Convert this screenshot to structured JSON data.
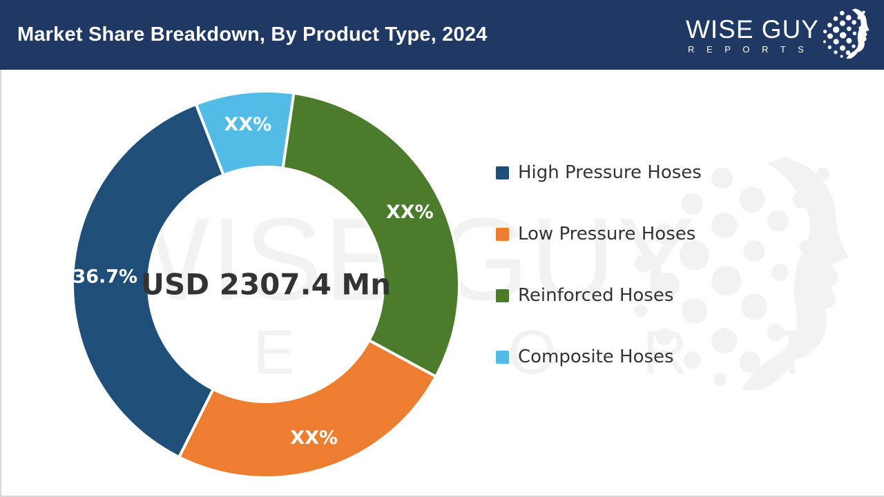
{
  "header": {
    "title": "Market Share Breakdown, By Product Type, 2024",
    "logo": {
      "line1": "WISE GUY",
      "line2": "R E P O R T S"
    }
  },
  "watermark": {
    "line1": "WISE GUY",
    "line2": "R E P O R T S"
  },
  "colors": {
    "header_bg": "#203864",
    "page_bg": "#ffffff",
    "text_dark": "#333333",
    "watermark": "#f2f2f2",
    "border_line": "#d9d9d9"
  },
  "chart_data": {
    "type": "pie",
    "subtype": "donut",
    "title": "Market Share Breakdown, By Product Type, 2024",
    "center_label": "USD 2307.4 Mn",
    "legend_position": "right",
    "start_angle_deg": -21.2,
    "segments": [
      {
        "label": "High Pressure Hoses",
        "value_pct": 36.7,
        "slice_label": "36.7%",
        "color": "#1F4E79"
      },
      {
        "label": "Low Pressure Hoses",
        "value_pct": 24.5,
        "slice_label": "XX%",
        "color": "#ED7D31"
      },
      {
        "label": "Reinforced Hoses",
        "value_pct": 30.6,
        "slice_label": "XX%",
        "color": "#4A7C2B"
      },
      {
        "label": "Composite Hoses",
        "value_pct": 8.2,
        "slice_label": "XX%",
        "color": "#52BCE6"
      }
    ],
    "draw_order": [
      "Composite Hoses",
      "Reinforced Hoses",
      "Low Pressure Hoses",
      "High Pressure Hoses"
    ]
  }
}
